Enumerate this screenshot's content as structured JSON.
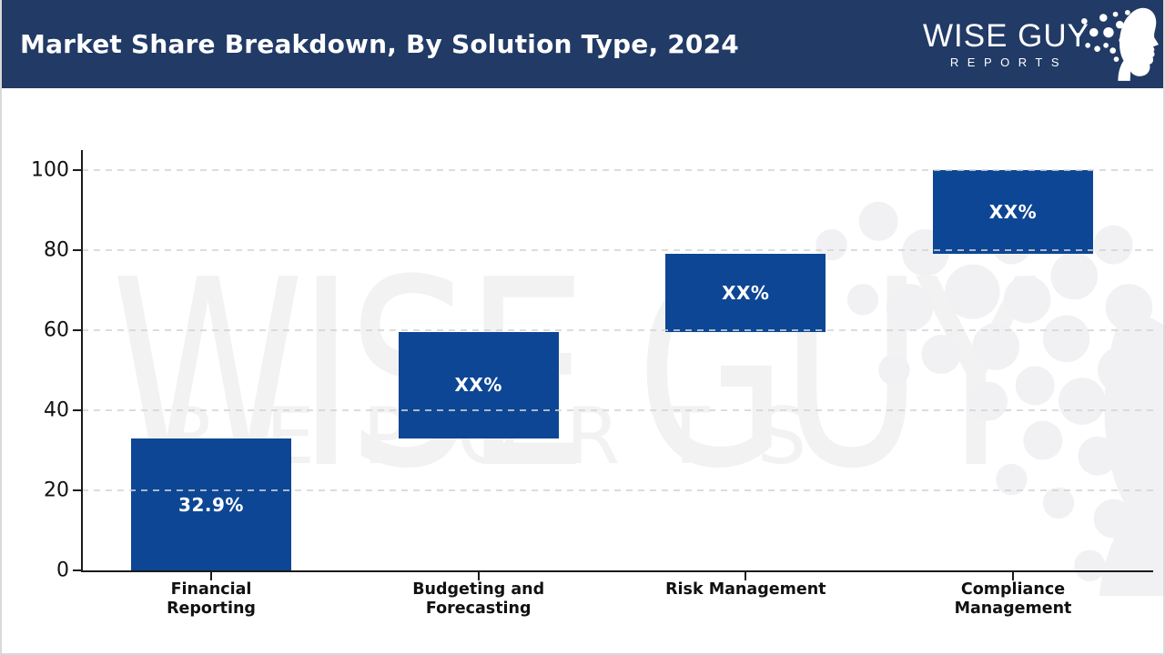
{
  "header": {
    "title": "Market Share Breakdown, By Solution Type, 2024",
    "bg_color": "#213a66",
    "logo": {
      "name": "WISE GUY",
      "sub": "REPORTS"
    }
  },
  "watermark": {
    "name": "WISE GUY",
    "sub": "REPORTS"
  },
  "chart_data": {
    "type": "bar",
    "variant": "waterfall",
    "title": "Market Share Breakdown, By Solution Type, 2024",
    "categories": [
      {
        "label": "Financial Reporting",
        "lines": [
          "Financial",
          "Reporting"
        ]
      },
      {
        "label": "Budgeting and Forecasting",
        "lines": [
          "Budgeting and",
          "Forecasting"
        ]
      },
      {
        "label": "Risk Management",
        "lines": [
          "Risk Management"
        ]
      },
      {
        "label": "Compliance Management",
        "lines": [
          "Compliance",
          "Management"
        ]
      }
    ],
    "segments": [
      {
        "category": "Financial Reporting",
        "start": 0,
        "end": 32.9,
        "value_label": "32.9%"
      },
      {
        "category": "Budgeting and Forecasting",
        "start": 32.9,
        "end": 59.6,
        "value_label": "XX%"
      },
      {
        "category": "Risk Management",
        "start": 59.6,
        "end": 79.2,
        "value_label": "XX%"
      },
      {
        "category": "Compliance Management",
        "start": 79.2,
        "end": 100,
        "value_label": "XX%"
      }
    ],
    "yticks": [
      0,
      20,
      40,
      60,
      80,
      100
    ],
    "ylim": [
      0,
      105
    ],
    "xlabel": "",
    "ylabel": "",
    "legend": "none",
    "grid": "horizontal-dashed",
    "grid_above_bars": true,
    "bar_color": "#0d4694",
    "value_label_color": "#ffffff",
    "axis_color": "#1a1a1a",
    "tick_label_color": "#111111"
  }
}
